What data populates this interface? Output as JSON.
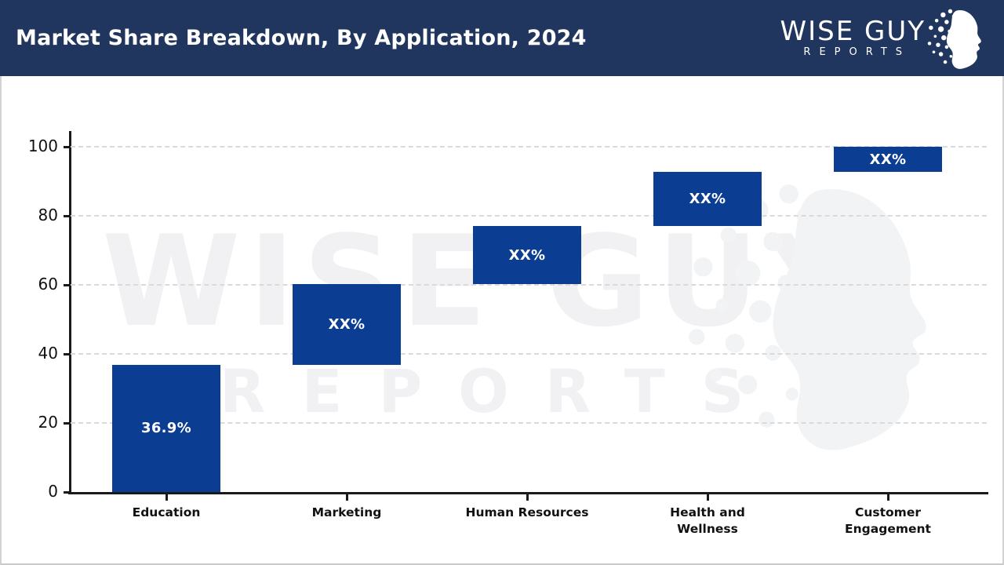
{
  "header": {
    "title": "Market Share Breakdown, By Application, 2024",
    "logo": {
      "line1": "WISE GUY",
      "line2": "REPORTS"
    }
  },
  "watermark": {
    "line1": "WISE GUY",
    "line2": "REPORTS"
  },
  "chart_data": {
    "type": "bar",
    "subtype": "waterfall",
    "title": "Market Share Breakdown, By Application, 2024",
    "xlabel": "",
    "ylabel": "",
    "ylim": [
      0,
      105
    ],
    "yticks": [
      0,
      20,
      40,
      60,
      80,
      100
    ],
    "grid": "horizontal-dashed",
    "legend": "none",
    "bar_color": "#0b3e92",
    "categories": [
      "Education",
      "Marketing",
      "Human Resources",
      "Health and Wellness",
      "Customer Engagement"
    ],
    "bars": [
      {
        "category": "Education",
        "label": "36.9%",
        "value": 36.9,
        "start": 0,
        "end": 36.9,
        "label_lines": [
          "Education"
        ]
      },
      {
        "category": "Marketing",
        "label": "XX%",
        "value": 23.3,
        "start": 36.9,
        "end": 60.2,
        "label_lines": [
          "Marketing"
        ]
      },
      {
        "category": "Human Resources",
        "label": "XX%",
        "value": 16.8,
        "start": 60.2,
        "end": 77.0,
        "label_lines": [
          "Human Resources"
        ]
      },
      {
        "category": "Health and Wellness",
        "label": "XX%",
        "value": 15.7,
        "start": 77.0,
        "end": 92.7,
        "label_lines": [
          "Health and",
          "Wellness"
        ]
      },
      {
        "category": "Customer Engagement",
        "label": "XX%",
        "value": 7.3,
        "start": 92.7,
        "end": 100.0,
        "label_lines": [
          "Customer",
          "Engagement"
        ]
      }
    ]
  },
  "colors": {
    "header_bg": "#21365f",
    "bar": "#0b3e92",
    "axis": "#1a1a1a",
    "grid": "#dadada",
    "watermark": "#f2f3f5"
  }
}
